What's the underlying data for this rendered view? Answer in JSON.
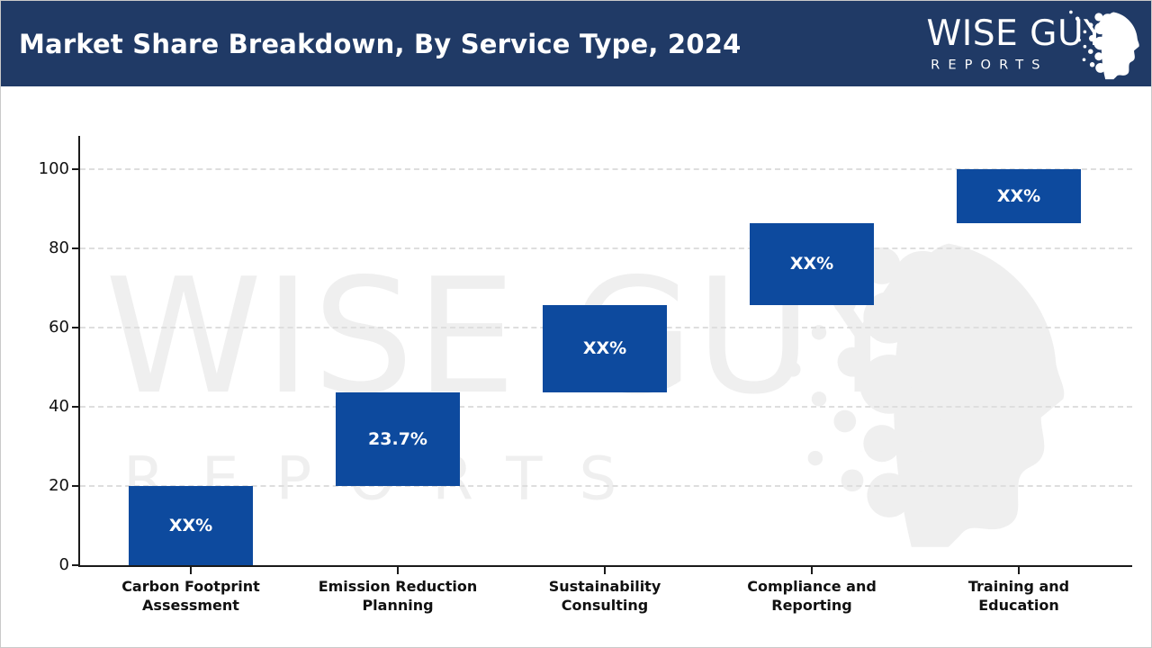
{
  "header": {
    "title": "Market Share Breakdown, By Service Type, 2024",
    "background": "#203A66",
    "logo": {
      "wordmark": "WISE GUY",
      "tagline": "REPORTS"
    }
  },
  "watermark": {
    "wordmark": "WISE GUY",
    "tagline": "REPORTS"
  },
  "chart_data": {
    "type": "bar",
    "subtype": "waterfall",
    "title": "Market Share Breakdown, By Service Type, 2024",
    "categories": [
      "Carbon Footprint\nAssessment",
      "Emission Reduction\nPlanning",
      "Sustainability\nConsulting",
      "Compliance and\nReporting",
      "Training and\nEducation"
    ],
    "segments": [
      {
        "category": "Carbon Footprint Assessment",
        "start": 0,
        "end": 20,
        "label": "XX%"
      },
      {
        "category": "Emission Reduction Planning",
        "start": 20,
        "end": 43.7,
        "label": "23.7%"
      },
      {
        "category": "Sustainability Consulting",
        "start": 43.7,
        "end": 65.7,
        "label": "XX%"
      },
      {
        "category": "Compliance and Reporting",
        "start": 65.7,
        "end": 86.4,
        "label": "XX%"
      },
      {
        "category": "Training and Education",
        "start": 86.4,
        "end": 100,
        "label": "XX%"
      }
    ],
    "yticks": [
      0,
      20,
      40,
      60,
      80,
      100
    ],
    "ylim": [
      0,
      108
    ],
    "xlabel": "",
    "ylabel": "",
    "legend": "none",
    "grid": {
      "horizontal": true,
      "style": "dashed",
      "color": "#DEDEDE"
    },
    "bar_color": "#0D4A9E",
    "bar_label_color": "#FFFFFF",
    "axis_color": "#1A1A1A"
  }
}
